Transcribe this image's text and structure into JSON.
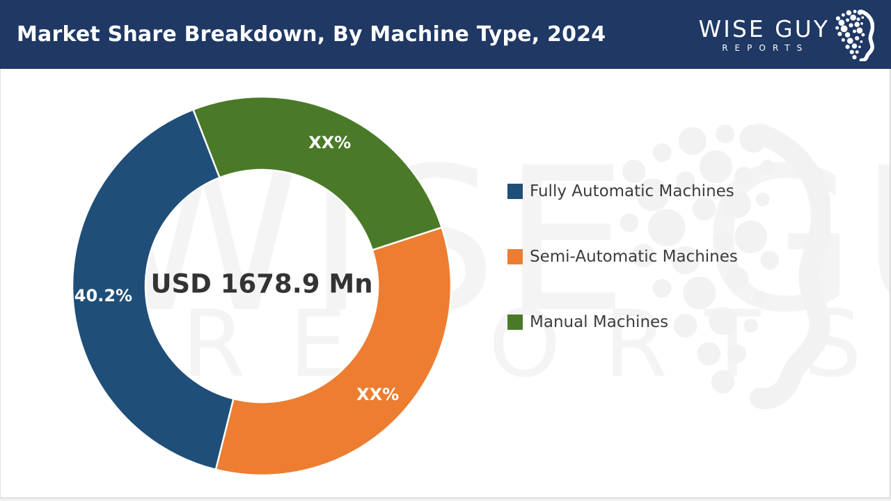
{
  "header": {
    "title": "Market Share Breakdown, By Machine Type, 2024",
    "bg_color": "#1f3864",
    "logo": {
      "line1": "WISE GUY",
      "line2": "REPORTS"
    }
  },
  "watermark": {
    "line1": "WISE GUY",
    "line2": "REPORTS"
  },
  "chart_data": {
    "type": "pie",
    "subtype": "donut",
    "title": "Market Share Breakdown, By Machine Type, 2024",
    "center_label": "USD 1678.9 Mn",
    "units": "percent market share",
    "start_angle_deg": 18,
    "direction": "counterclockwise",
    "grid": false,
    "legend_position": "right",
    "segments": [
      {
        "label": "Manual Machines",
        "value_displayed": "XX%",
        "value_pct_estimated": 25.9,
        "color": "#4a7a28"
      },
      {
        "label": "Fully Automatic Machines",
        "value_displayed": "40.2%",
        "value_pct_estimated": 40.2,
        "color": "#1f4e78"
      },
      {
        "label": "Semi-Automatic Machines",
        "value_displayed": "XX%",
        "value_pct_estimated": 33.9,
        "color": "#ed7d31"
      }
    ],
    "legend": [
      {
        "label": "Fully Automatic Machines",
        "color": "#1f4e78"
      },
      {
        "label": "Semi-Automatic Machines",
        "color": "#ed7d31"
      },
      {
        "label": "Manual Machines",
        "color": "#4a7a28"
      }
    ]
  }
}
